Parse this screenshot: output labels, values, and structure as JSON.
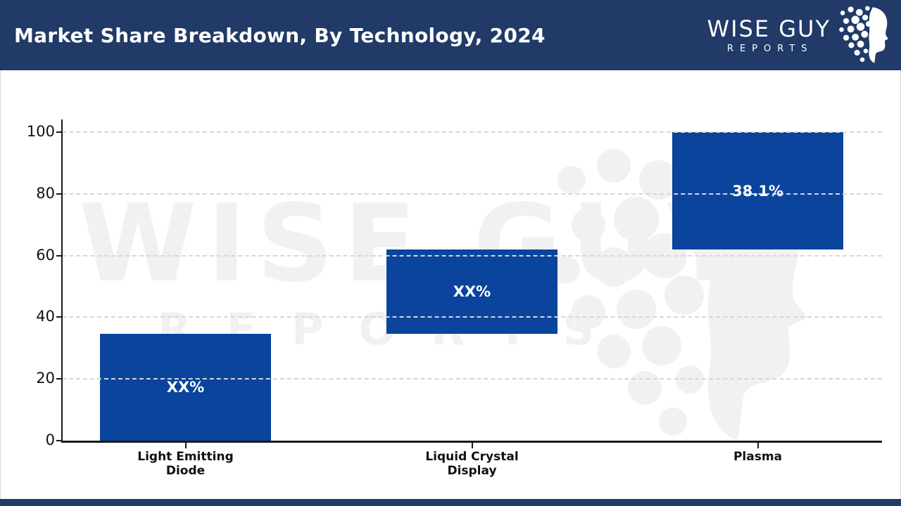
{
  "header": {
    "title": "Market Share Breakdown, By Technology, 2024",
    "bg_color": "#213a67",
    "logo": {
      "line1": "WISE GUY",
      "line2": "REPORTS"
    }
  },
  "footer": {
    "bg_color": "#213a67"
  },
  "watermark": {
    "line1": "WISE GUY",
    "line2": "REPORTS"
  },
  "chart_data": {
    "type": "bar",
    "subtype": "floating-segment-waterfall",
    "title": "Market Share Breakdown, By Technology, 2024",
    "categories": [
      "Light Emitting\nDiode",
      "Liquid Crystal\nDisplay",
      "Plasma"
    ],
    "segments": [
      {
        "category": "Light Emitting Diode",
        "start": 0,
        "end": 34.6,
        "value": 34.6,
        "label": "XX%"
      },
      {
        "category": "Liquid Crystal Display",
        "start": 34.6,
        "end": 61.9,
        "value": 27.3,
        "label": "XX%"
      },
      {
        "category": "Plasma",
        "start": 61.9,
        "end": 100,
        "value": 38.1,
        "label": "38.1%"
      }
    ],
    "bar_labels": [
      "XX%",
      "XX%",
      "38.1%"
    ],
    "y_ticks": [
      0,
      20,
      40,
      60,
      80,
      100
    ],
    "ylim": [
      0,
      100
    ],
    "xlabel": "",
    "ylabel": "",
    "legend": "none",
    "grid": "horizontal-dashed",
    "bar_color": "#0a449c",
    "grid_color": "#d7d7d7",
    "axis_color": "#1a1a1a"
  }
}
